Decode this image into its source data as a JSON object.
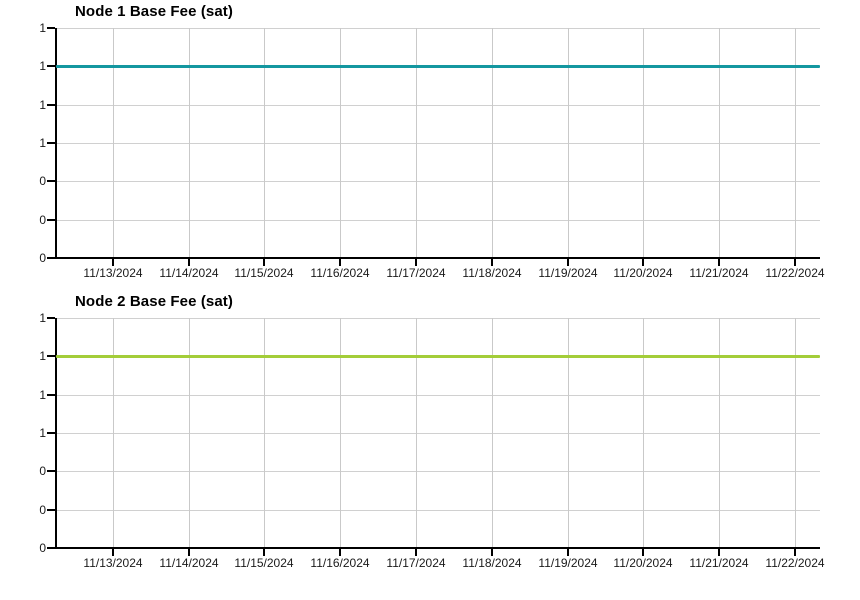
{
  "page": {
    "background": "#ffffff"
  },
  "colors": {
    "grid_horizontal": "#d0d0d0",
    "grid_vertical": "#c9c9c9",
    "axis_spine": "#000000",
    "tick_label": "#1a1a1a",
    "title": "#000000"
  },
  "chart_data": [
    {
      "type": "line",
      "title": "Node 1 Base Fee (sat)",
      "xlabel": "",
      "ylabel": "",
      "legend": "none",
      "grid": true,
      "ylim": [
        0,
        1.2
      ],
      "y_tick_values": [
        1.2,
        1.0,
        0.8,
        0.6,
        0.4,
        0.2,
        0
      ],
      "y_tick_labels": [
        "1",
        "1",
        "1",
        "1",
        "0",
        "0",
        "0"
      ],
      "x_tick_labels": [
        "11/13/2024",
        "11/14/2024",
        "11/15/2024",
        "11/16/2024",
        "11/17/2024",
        "11/18/2024",
        "11/19/2024",
        "11/20/2024",
        "11/21/2024",
        "11/22/2024"
      ],
      "x_padding_days": {
        "before_first_tick": 0.75,
        "after_last_tick": 0.33
      },
      "series": [
        {
          "name": "Node 1 Base Fee",
          "color": "#1497a0",
          "constant_value": 1,
          "values": [
            1,
            1,
            1,
            1,
            1,
            1,
            1,
            1,
            1,
            1
          ]
        }
      ]
    },
    {
      "type": "line",
      "title": "Node 2 Base Fee (sat)",
      "xlabel": "",
      "ylabel": "",
      "legend": "none",
      "grid": true,
      "ylim": [
        0,
        1.2
      ],
      "y_tick_values": [
        1.2,
        1.0,
        0.8,
        0.6,
        0.4,
        0.2,
        0
      ],
      "y_tick_labels": [
        "1",
        "1",
        "1",
        "1",
        "0",
        "0",
        "0"
      ],
      "x_tick_labels": [
        "11/13/2024",
        "11/14/2024",
        "11/15/2024",
        "11/16/2024",
        "11/17/2024",
        "11/18/2024",
        "11/19/2024",
        "11/20/2024",
        "11/21/2024",
        "11/22/2024"
      ],
      "x_padding_days": {
        "before_first_tick": 0.75,
        "after_last_tick": 0.33
      },
      "series": [
        {
          "name": "Node 2 Base Fee",
          "color": "#a3cd39",
          "constant_value": 1,
          "values": [
            1,
            1,
            1,
            1,
            1,
            1,
            1,
            1,
            1,
            1
          ]
        }
      ]
    }
  ]
}
